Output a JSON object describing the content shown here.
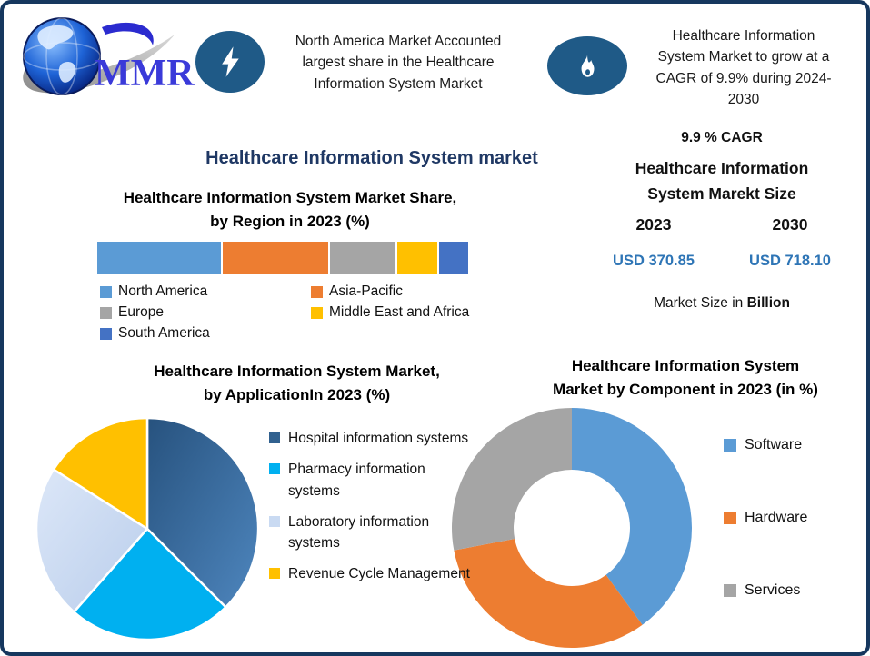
{
  "theme": {
    "frame_border": "#16375E",
    "badge_blue": "#1F5A87",
    "title_navy": "#1F3864",
    "value_blue": "#2E75B6",
    "logo_text_blue": "#3A3AD9"
  },
  "logo": {
    "text": "MMR"
  },
  "banners": [
    {
      "icon": "lightning-icon",
      "lines": [
        "North America Market Accounted",
        "largest share in the Healthcare",
        "Information System Market"
      ]
    },
    {
      "icon": "flame-icon",
      "lines": [
        "Healthcare Information",
        "System Market to grow at a",
        "CAGR of 9.9% during 2024-",
        "2030"
      ]
    }
  ],
  "main_title": "Healthcare Information System market",
  "kpi": {
    "cagr": "9.9 % CAGR",
    "title": "Healthcare Information System Marekt Size",
    "title_lines": [
      "Healthcare Information",
      "System Marekt Size"
    ],
    "columns": [
      {
        "year": "2023",
        "value": "USD 370.85"
      },
      {
        "year": "2030",
        "value": "USD 718.10"
      }
    ],
    "footnote_prefix": "Market Size in ",
    "footnote_bold": "Billion"
  },
  "chart_data": [
    {
      "type": "bar",
      "variant": "stacked-horizontal-single",
      "title": "Healthcare Information System Market Share, by Region in 2023 (%)",
      "title_lines": [
        "Healthcare Information System Market Share,",
        "by Region in 2023 (%)"
      ],
      "categories": [
        "North America",
        "Asia-Pacific",
        "Europe",
        "Middle East and Africa",
        "South America"
      ],
      "values": [
        34,
        29,
        18,
        11,
        8
      ],
      "colors": [
        "#5B9BD5",
        "#ED7D31",
        "#A5A5A5",
        "#FFC000",
        "#4472C4"
      ],
      "unit": "%",
      "legend_position": "bottom"
    },
    {
      "type": "pie",
      "title": "Healthcare Information System Market, by ApplicationIn 2023 (%)",
      "title_lines": [
        "Healthcare Information System Market,",
        "by ApplicationIn 2023 (%)"
      ],
      "labels": [
        "Hospital information systems",
        "Pharmacy information systems",
        "Laboratory information systems",
        "Revenue Cycle Management"
      ],
      "values": [
        37.5,
        24,
        22.5,
        16
      ],
      "colors": [
        "#31618F",
        "#00B0F0",
        "#C9DAF2",
        "#FFC000"
      ],
      "gradients": {
        "0": [
          "#27527E",
          "#4E86BE"
        ],
        "2": [
          "#DCE7F8",
          "#B9CDEB"
        ]
      },
      "start_angle_deg": 0,
      "unit": "%",
      "legend_position": "right"
    },
    {
      "type": "pie",
      "variant": "donut",
      "title": "Healthcare Information System Market by Component in 2023 (in %)",
      "title_lines": [
        "Healthcare Information System",
        "Market by Component in 2023 (in %)"
      ],
      "labels": [
        "Software",
        "Hardware",
        "Services"
      ],
      "values": [
        40,
        32,
        28
      ],
      "colors": [
        "#5B9BD5",
        "#ED7D31",
        "#A5A5A5"
      ],
      "inner_radius_ratio": 0.485,
      "start_angle_deg": 0,
      "unit": "%",
      "legend_position": "right"
    }
  ]
}
